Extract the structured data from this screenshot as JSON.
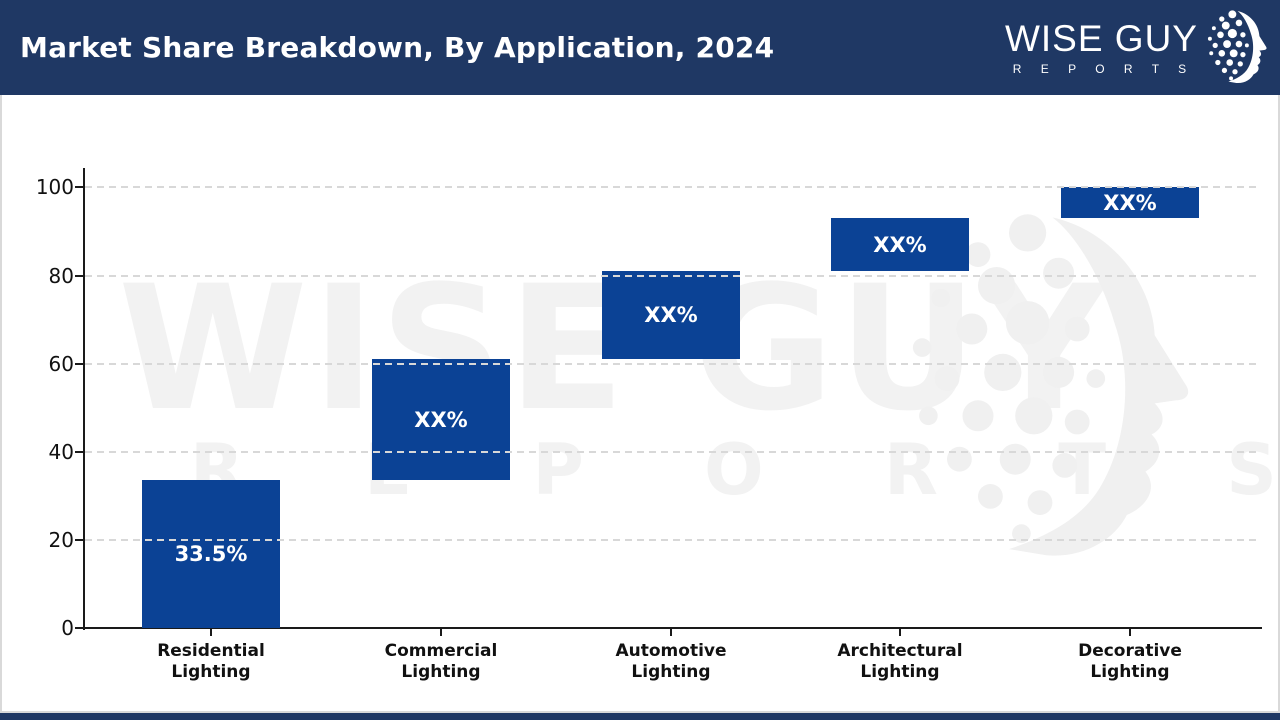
{
  "header": {
    "title": "Market Share Breakdown, By Application, 2024",
    "bg_color": "#1f3864",
    "logo_line1": "WISE GUY",
    "logo_line2": "R E P O R T S"
  },
  "watermark": {
    "line1": "WISE GUY",
    "line2": "R E P O R T S"
  },
  "footer": {
    "bg_color": "#1f3864"
  },
  "chart_data": {
    "type": "bar",
    "subtype": "waterfall",
    "title": "Market Share Breakdown, By Application, 2024",
    "categories": [
      "Residential Lighting",
      "Commercial Lighting",
      "Automotive Lighting",
      "Architectural Lighting",
      "Decorative Lighting"
    ],
    "segments": [
      {
        "category": "Residential Lighting",
        "start": 0,
        "end": 33.5,
        "value": 33.5,
        "label": "33.5%"
      },
      {
        "category": "Commercial Lighting",
        "start": 33.5,
        "end": 61,
        "value": 27.5,
        "label": "XX%"
      },
      {
        "category": "Automotive Lighting",
        "start": 61,
        "end": 81,
        "value": 20,
        "label": "XX%"
      },
      {
        "category": "Architectural Lighting",
        "start": 81,
        "end": 93,
        "value": 12,
        "label": "XX%"
      },
      {
        "category": "Decorative Lighting",
        "start": 93,
        "end": 100,
        "value": 7,
        "label": "XX%"
      }
    ],
    "yticks": [
      0,
      20,
      40,
      60,
      80,
      100
    ],
    "ylim": [
      0,
      104
    ],
    "xlabel": "",
    "ylabel": "",
    "grid": "horizontal-dashed",
    "legend": false,
    "bar_color": "#0b4295",
    "bar_label_color": "#ffffff",
    "axis_color": "#1a1a1a",
    "gridline_color": "#d8d8d8"
  }
}
